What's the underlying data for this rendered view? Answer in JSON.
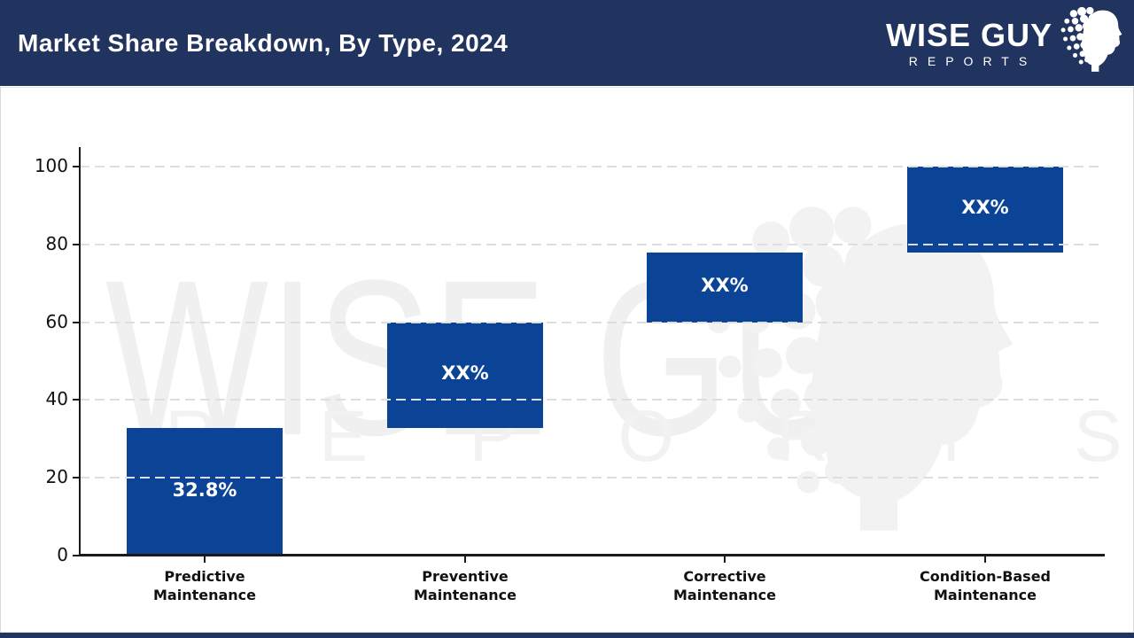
{
  "header": {
    "title": "Market Share Breakdown, By Type, 2024",
    "bg_color": "#21335f",
    "logo": {
      "line1": "WISE GUY",
      "line2": "REPORTS"
    }
  },
  "watermark": {
    "line1": "WISE GUY",
    "line2": "R E P O R T S"
  },
  "chart_data": {
    "type": "bar",
    "subtype": "waterfall",
    "title": "Market Share Breakdown, By Type, 2024",
    "categories": [
      "Predictive Maintenance",
      "Preventive Maintenance",
      "Corrective Maintenance",
      "Condition-Based Maintenance"
    ],
    "segments": [
      {
        "category": "Predictive Maintenance",
        "start": 0,
        "end": 32.8,
        "label": "32.8%"
      },
      {
        "category": "Preventive Maintenance",
        "start": 32.8,
        "end": 60,
        "label": "XX%"
      },
      {
        "category": "Corrective Maintenance",
        "start": 60,
        "end": 78,
        "label": "XX%"
      },
      {
        "category": "Condition-Based Maintenance",
        "start": 78,
        "end": 100,
        "label": "XX%"
      }
    ],
    "yticks": [
      0,
      20,
      40,
      60,
      80,
      100
    ],
    "ylim": [
      0,
      100
    ],
    "xlabel": "",
    "ylabel": "",
    "grid": "horizontal dashed",
    "legend": "none",
    "bar_color": "#0b4496",
    "bar_label_color": "#ffffff",
    "axis_color": "#1a1a1a"
  }
}
